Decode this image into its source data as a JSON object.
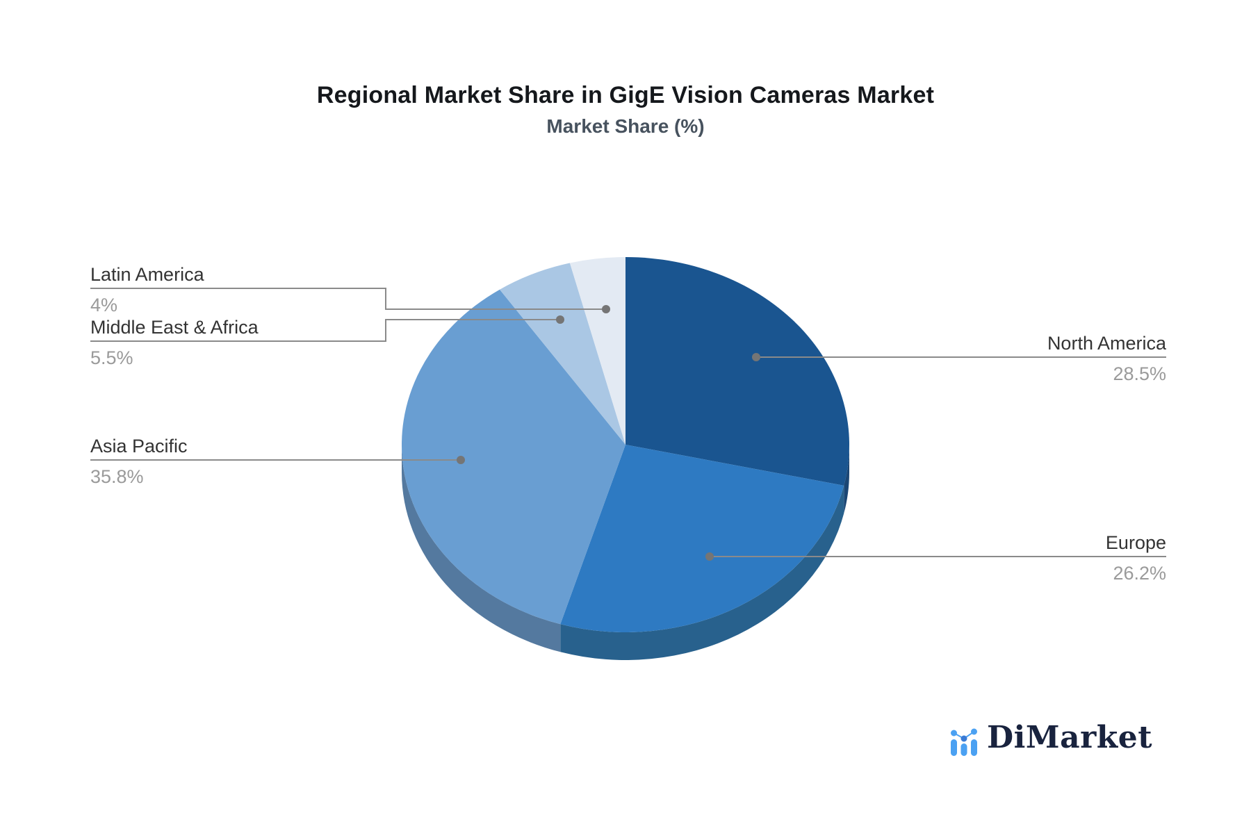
{
  "header": {
    "title": "Regional Market Share in GigE Vision Cameras Market",
    "subtitle": "Market Share (%)"
  },
  "chart_data": {
    "type": "pie",
    "title": "Regional Market Share in GigE Vision Cameras Market",
    "subtitle": "Market Share (%)",
    "unit": "%",
    "style": "3d",
    "direction": "clockwise",
    "start_angle_deg": 0,
    "legend_position": "none",
    "labels": [
      "North America",
      "Europe",
      "Asia Pacific",
      "Middle East & Africa",
      "Latin America"
    ],
    "values": [
      28.5,
      26.2,
      35.8,
      5.5,
      4
    ],
    "value_labels": [
      "28.5%",
      "26.2%",
      "35.8%",
      "5.5%",
      "4%"
    ],
    "colors": [
      "#1A5590",
      "#2E7AC2",
      "#699ED2",
      "#AAC7E4",
      "#E3EAF3"
    ],
    "depth_colors": [
      "#1B4674",
      "#28618D",
      "#54799F",
      "#8398AE",
      "#AEB5BD"
    ]
  },
  "branding": {
    "logo_text": "DiMarket",
    "logo_icon": "bar-line-chart-icon",
    "logo_icon_color": "#4BA1F2",
    "logo_text_color": "#19233E"
  },
  "colors": {
    "background": "#FFFFFF",
    "label_text": "#333333",
    "value_text": "#9A9A9A",
    "leader_line": "#8A8A8A",
    "leader_dot": "#757575"
  }
}
